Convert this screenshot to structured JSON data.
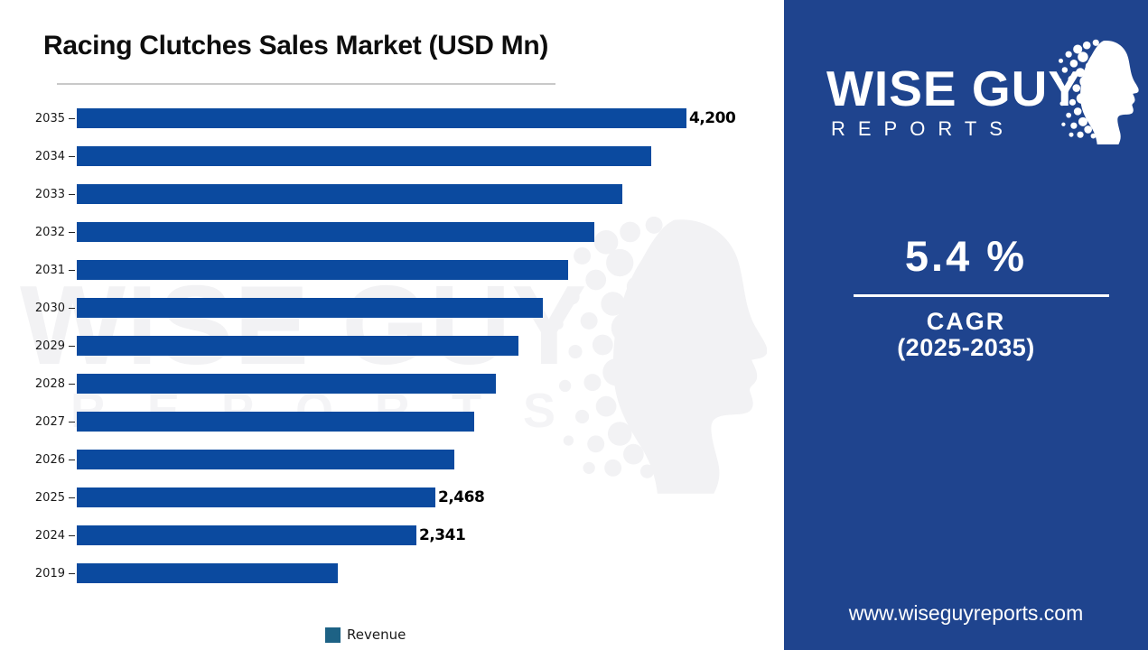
{
  "title": "Racing Clutches Sales Market (USD Mn)",
  "watermark": {
    "line1": "WISE GUY",
    "line2": "REPORTS"
  },
  "chart_data": {
    "type": "bar",
    "orientation": "horizontal",
    "title": "Racing Clutches Sales Market (USD Mn)",
    "xlabel": "",
    "ylabel": "",
    "grid": false,
    "x_axis_hidden": true,
    "categories": [
      "2035",
      "2034",
      "2033",
      "2032",
      "2031",
      "2030",
      "2029",
      "2028",
      "2027",
      "2026",
      "2025",
      "2024",
      "2019"
    ],
    "values": [
      4200,
      3960,
      3760,
      3565,
      3385,
      3210,
      3045,
      2890,
      2740,
      2600,
      2468,
      2341,
      1800
    ],
    "rows": [
      {
        "year": "2035",
        "value": 4200,
        "label": "4,200"
      },
      {
        "year": "2034",
        "value": 3960,
        "label": ""
      },
      {
        "year": "2033",
        "value": 3760,
        "label": ""
      },
      {
        "year": "2032",
        "value": 3565,
        "label": ""
      },
      {
        "year": "2031",
        "value": 3385,
        "label": ""
      },
      {
        "year": "2030",
        "value": 3210,
        "label": ""
      },
      {
        "year": "2029",
        "value": 3045,
        "label": ""
      },
      {
        "year": "2028",
        "value": 2890,
        "label": ""
      },
      {
        "year": "2027",
        "value": 2740,
        "label": ""
      },
      {
        "year": "2026",
        "value": 2600,
        "label": ""
      },
      {
        "year": "2025",
        "value": 2468,
        "label": "2,468"
      },
      {
        "year": "2024",
        "value": 2341,
        "label": "2,341"
      },
      {
        "year": "2019",
        "value": 1800,
        "label": ""
      }
    ],
    "bar_color": "#0b4a9f",
    "legend": {
      "label": "Revenue",
      "swatch_color": "#1d6285",
      "position": "bottom-center"
    }
  },
  "panel": {
    "background": "#1f448e",
    "logo": {
      "line1": "WISE GUY",
      "line2": "REPORTS",
      "icon": "head-profile-dots-icon"
    },
    "cagr": {
      "value": "5.4 %",
      "label1": "CAGR",
      "label2": "(2025-2035)"
    },
    "website": "www.wiseguyreports.com"
  }
}
